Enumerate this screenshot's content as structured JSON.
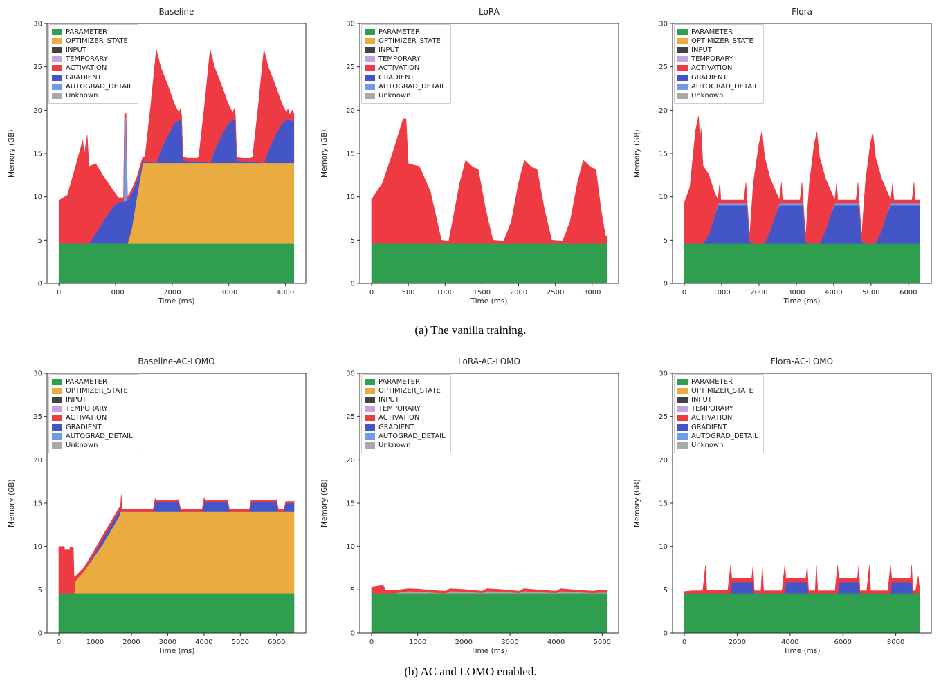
{
  "figure": {
    "captions": {
      "a": "(a) The vanilla training.",
      "b": "(b) AC and LOMO enabled."
    }
  },
  "legend": {
    "items": [
      "PARAMETER",
      "OPTIMIZER_STATE",
      "INPUT",
      "TEMPORARY",
      "ACTIVATION",
      "GRADIENT",
      "AUTOGRAD_DETAIL",
      "Unknown"
    ],
    "colors": {
      "PARAMETER": "#2f9e4f",
      "OPTIMIZER_STATE": "#eaab40",
      "INPUT": "#424242",
      "TEMPORARY": "#c5a3e0",
      "ACTIVATION": "#ee3b43",
      "GRADIENT": "#4456c7",
      "AUTOGRAD_DETAIL": "#6f9ce8",
      "Unknown": "#a9a9a9"
    }
  },
  "chart_data": [
    {
      "type": "area",
      "title": "Baseline",
      "xlabel": "Time (ms)",
      "ylabel": "Memory (GB)",
      "ylim": [
        0,
        30
      ],
      "yticks": [
        0,
        5,
        10,
        15,
        20,
        25,
        30
      ],
      "xlim": [
        -210,
        4360
      ],
      "xticks": [
        0,
        1000,
        2000,
        3000,
        4000
      ],
      "x": [
        0,
        150,
        300,
        420,
        450,
        500,
        530,
        650,
        800,
        950,
        1050,
        1140,
        1160,
        1185,
        1210,
        1280,
        1380,
        1480,
        1520,
        1620,
        1720,
        1800,
        1920,
        2040,
        2120,
        2145,
        2165,
        2190,
        2300,
        2420,
        2470,
        2570,
        2670,
        2750,
        2870,
        2990,
        3070,
        3095,
        3115,
        3140,
        3250,
        3370,
        3420,
        3520,
        3620,
        3700,
        3820,
        3940,
        4020,
        4045,
        4065,
        4090,
        4120,
        4150
      ],
      "series": [
        {
          "name": "PARAMETER",
          "const": 4.6
        },
        {
          "name": "OPTIMIZER_STATE",
          "values": [
            0,
            0,
            0,
            0,
            0,
            0,
            0,
            0,
            0,
            0,
            0,
            0,
            0,
            0,
            0,
            1.5,
            5.5,
            9.3,
            9.3,
            9.3,
            9.3,
            9.3,
            9.3,
            9.3,
            9.3,
            9.3,
            9.3,
            9.3,
            9.3,
            9.3,
            9.3,
            9.3,
            9.3,
            9.3,
            9.3,
            9.3,
            9.3,
            9.3,
            9.3,
            9.3,
            9.3,
            9.3,
            9.3,
            9.3,
            9.3,
            9.3,
            9.3,
            9.3,
            9.3,
            9.3,
            9.3,
            9.3,
            9.3,
            9.3
          ]
        },
        {
          "name": "GRADIENT",
          "values": [
            0,
            0,
            0,
            0,
            0,
            0,
            0,
            1.2,
            2.8,
            4.2,
            4.8,
            4.9,
            4.9,
            4.9,
            5.0,
            4.2,
            1.8,
            0.3,
            0.2,
            0.1,
            0,
            1.5,
            3.2,
            4.6,
            5.0,
            5.0,
            5.0,
            0.3,
            0.2,
            0.2,
            0.2,
            0.1,
            0,
            1.5,
            3.2,
            4.6,
            5.0,
            5.0,
            5.0,
            0.3,
            0.2,
            0.2,
            0.2,
            0.1,
            0,
            1.5,
            3.2,
            4.6,
            5.0,
            5.0,
            5.0,
            5.0,
            4.9,
            4.9
          ]
        },
        {
          "name": "AUTOGRAD_DETAIL",
          "values": [
            0,
            0,
            0,
            0,
            0,
            0,
            0,
            0,
            0,
            0,
            0,
            0,
            9.6,
            9.6,
            0,
            0,
            0,
            0,
            0,
            0,
            0,
            0,
            0,
            0,
            0,
            0,
            0,
            0,
            0,
            0,
            0,
            0,
            0,
            0,
            0,
            0,
            0,
            0,
            0,
            0,
            0,
            0,
            0,
            0,
            0,
            0,
            0,
            0,
            0,
            0,
            0,
            0,
            0,
            0
          ]
        },
        {
          "name": "ACTIVATION",
          "values": [
            5.0,
            5.6,
            9.0,
            11.9,
            10.3,
            12.5,
            8.9,
            8.0,
            4.8,
            2.0,
            0.5,
            0.4,
            0.5,
            0.5,
            0.4,
            0.4,
            0.4,
            0.4,
            0.5,
            6.5,
            13.1,
            9.5,
            5.8,
            2.2,
            0.8,
            1.3,
            0.6,
            0.4,
            0.4,
            0.4,
            0.5,
            6.5,
            13.1,
            9.5,
            5.8,
            2.2,
            0.8,
            1.3,
            0.6,
            0.4,
            0.4,
            0.4,
            0.5,
            6.5,
            13.1,
            9.5,
            5.8,
            2.2,
            0.8,
            1.3,
            0.6,
            0.7,
            1.2,
            0.8
          ]
        }
      ]
    },
    {
      "type": "area",
      "title": "LoRA",
      "xlabel": "Time (ms)",
      "ylabel": "Memory (GB)",
      "ylim": [
        0,
        30
      ],
      "yticks": [
        0,
        5,
        10,
        15,
        20,
        25,
        30
      ],
      "xlim": [
        -160,
        3360
      ],
      "xticks": [
        0,
        500,
        1000,
        1500,
        2000,
        2500,
        3000
      ],
      "x": [
        0,
        150,
        300,
        430,
        470,
        500,
        650,
        800,
        950,
        1050,
        1100,
        1200,
        1280,
        1380,
        1450,
        1550,
        1650,
        1800,
        1900,
        2000,
        2080,
        2180,
        2250,
        2350,
        2450,
        2600,
        2700,
        2800,
        2880,
        2980,
        3050,
        3120,
        3180,
        3200
      ],
      "series": [
        {
          "name": "PARAMETER",
          "const": 4.6
        },
        {
          "name": "ACTIVATION",
          "values": [
            5.1,
            7.0,
            10.8,
            14.4,
            14.4,
            9.2,
            8.9,
            6.0,
            0.4,
            0.3,
            2.5,
            7.0,
            9.6,
            8.8,
            8.6,
            4.0,
            0.4,
            0.3,
            2.5,
            7.0,
            9.6,
            8.8,
            8.6,
            4.0,
            0.4,
            0.3,
            2.5,
            7.0,
            9.6,
            8.8,
            8.6,
            4.0,
            0.9,
            0.9
          ]
        }
      ]
    },
    {
      "type": "area",
      "title": "Flora",
      "xlabel": "Time (ms)",
      "ylabel": "Memory (GB)",
      "ylim": [
        0,
        30
      ],
      "yticks": [
        0,
        5,
        10,
        15,
        20,
        25,
        30
      ],
      "xlim": [
        -315,
        6615
      ],
      "xticks": [
        0,
        1000,
        2000,
        3000,
        4000,
        5000,
        6000
      ],
      "x": [
        0,
        150,
        300,
        380,
        420,
        450,
        500,
        650,
        800,
        900,
        950,
        980,
        1600,
        1650,
        1680,
        1750,
        1850,
        2000,
        2080,
        2150,
        2300,
        2450,
        2550,
        2600,
        2630,
        3100,
        3150,
        3180,
        3250,
        3350,
        3480,
        3550,
        3620,
        3780,
        3930,
        4030,
        4080,
        4110,
        4600,
        4650,
        4680,
        4750,
        4850,
        4980,
        5050,
        5120,
        5280,
        5430,
        5530,
        5580,
        5610,
        6100,
        6150,
        6180,
        6300
      ],
      "series": [
        {
          "name": "PARAMETER",
          "const": 4.6
        },
        {
          "name": "GRADIENT",
          "values": [
            0,
            0,
            0,
            0,
            0,
            0,
            0,
            1.0,
            3.0,
            4.4,
            4.4,
            4.4,
            4.4,
            4.4,
            4.4,
            0.3,
            0,
            0,
            0,
            0,
            1.5,
            3.5,
            4.4,
            4.4,
            4.4,
            4.4,
            4.4,
            4.4,
            0.3,
            0,
            0,
            0,
            0,
            1.5,
            3.5,
            4.4,
            4.4,
            4.4,
            4.4,
            4.4,
            4.4,
            0.3,
            0,
            0,
            0,
            0,
            1.5,
            3.5,
            4.4,
            4.4,
            4.4,
            4.4,
            4.4,
            4.4,
            4.4
          ]
        },
        {
          "name": "AUTOGRAD_DETAIL",
          "values": [
            0,
            0,
            0,
            0,
            0,
            0,
            0,
            0,
            0,
            0.25,
            0.25,
            0.25,
            0.25,
            0.25,
            0.25,
            0,
            0,
            0,
            0,
            0,
            0,
            0,
            0.25,
            0.25,
            0.25,
            0.25,
            0.25,
            0.25,
            0,
            0,
            0,
            0,
            0,
            0,
            0,
            0.25,
            0.25,
            0.25,
            0.25,
            0.25,
            0.25,
            0,
            0,
            0,
            0,
            0,
            0,
            0,
            0.25,
            0.25,
            0.25,
            0.25,
            0.25,
            0.25,
            0.25
          ]
        },
        {
          "name": "ACTIVATION",
          "values": [
            4.7,
            6.5,
            13.0,
            14.7,
            12.0,
            13.3,
            9.0,
            7.0,
            3.0,
            0.4,
            2.4,
            0.4,
            0.4,
            2.4,
            0.4,
            0.5,
            7.0,
            11.5,
            13.0,
            10.0,
            6.0,
            2.5,
            0.4,
            2.4,
            0.4,
            0.4,
            2.4,
            0.4,
            0.5,
            7.0,
            11.5,
            12.9,
            10.0,
            6.0,
            2.5,
            0.4,
            2.4,
            0.4,
            0.4,
            2.4,
            0.4,
            0.5,
            7.0,
            11.5,
            12.8,
            10.0,
            6.0,
            2.5,
            0.4,
            2.4,
            0.4,
            0.4,
            2.4,
            0.4,
            0.4
          ]
        }
      ]
    },
    {
      "type": "area",
      "title": "Baseline-AC-LOMO",
      "xlabel": "Time (ms)",
      "ylabel": "Memory (GB)",
      "ylim": [
        0,
        30
      ],
      "yticks": [
        0,
        5,
        10,
        15,
        20,
        25,
        30
      ],
      "xlim": [
        -325,
        6805
      ],
      "xticks": [
        0,
        1000,
        2000,
        3000,
        4000,
        5000,
        6000
      ],
      "x": [
        0,
        150,
        160,
        300,
        310,
        400,
        420,
        450,
        700,
        1000,
        1200,
        1400,
        1650,
        1700,
        1720,
        1750,
        2600,
        2650,
        2700,
        3300,
        3360,
        3950,
        4000,
        4050,
        4650,
        4700,
        5250,
        5300,
        5350,
        6000,
        6050,
        6200,
        6250,
        6480
      ],
      "series": [
        {
          "name": "PARAMETER",
          "const": 4.6
        },
        {
          "name": "OPTIMIZER_STATE",
          "values": [
            0,
            0,
            0,
            0,
            0,
            0,
            0,
            1.4,
            2.6,
            4.4,
            5.6,
            7.0,
            8.8,
            9.4,
            9.4,
            9.4,
            9.4,
            9.4,
            9.4,
            9.4,
            9.4,
            9.4,
            9.4,
            9.4,
            9.4,
            9.4,
            9.4,
            9.4,
            9.4,
            9.4,
            9.4,
            9.4,
            9.4,
            9.4
          ]
        },
        {
          "name": "GRADIENT",
          "values": [
            0,
            0,
            0,
            0,
            0,
            0,
            0,
            0,
            0,
            0.3,
            0.6,
            0.6,
            0.6,
            0.3,
            0.2,
            0,
            0,
            1.0,
            1.1,
            1.1,
            0,
            0,
            1.0,
            1.1,
            1.1,
            0,
            0,
            1.0,
            1.1,
            1.1,
            0,
            0,
            1.0,
            1.0
          ]
        },
        {
          "name": "ACTIVATION",
          "values": [
            5.4,
            5.4,
            5.0,
            5.0,
            5.3,
            5.3,
            1.9,
            0.5,
            0.4,
            0.4,
            0.4,
            0.4,
            0.4,
            0.4,
            1.8,
            0.3,
            0.3,
            0.5,
            0.2,
            0.3,
            0.3,
            0.3,
            0.6,
            0.2,
            0.3,
            0.3,
            0.3,
            0.4,
            0.2,
            0.3,
            0.3,
            0.3,
            0.2,
            0.2
          ]
        }
      ]
    },
    {
      "type": "area",
      "title": "LoRA-AC-LOMO",
      "xlabel": "Time (ms)",
      "ylabel": "Memory (GB)",
      "ylim": [
        0,
        30
      ],
      "yticks": [
        0,
        5,
        10,
        15,
        20,
        25,
        30
      ],
      "xlim": [
        -255,
        5355
      ],
      "xticks": [
        0,
        1000,
        2000,
        3000,
        4000,
        5000
      ],
      "x": [
        0,
        100,
        250,
        300,
        500,
        800,
        1000,
        1300,
        1600,
        1700,
        2000,
        2400,
        2500,
        2800,
        3200,
        3300,
        3600,
        4000,
        4100,
        4400,
        4800,
        5000,
        5100
      ],
      "series": [
        {
          "name": "PARAMETER",
          "const": 4.6
        },
        {
          "name": "Unknown",
          "values": [
            0,
            0,
            0,
            0,
            0,
            0.25,
            0.2,
            0.1,
            0,
            0.25,
            0.2,
            0.05,
            0.25,
            0.2,
            0.05,
            0.25,
            0.15,
            0.05,
            0.25,
            0.15,
            0.05,
            0.1,
            0.1
          ]
        },
        {
          "name": "ACTIVATION",
          "values": [
            0.7,
            0.8,
            0.9,
            0.4,
            0.35,
            0.3,
            0.3,
            0.25,
            0.25,
            0.3,
            0.25,
            0.2,
            0.3,
            0.25,
            0.2,
            0.3,
            0.25,
            0.2,
            0.3,
            0.25,
            0.2,
            0.3,
            0.3
          ]
        }
      ]
    },
    {
      "type": "area",
      "title": "Flora-AC-LOMO",
      "xlabel": "Time (ms)",
      "ylabel": "Memory (GB)",
      "ylim": [
        0,
        30
      ],
      "yticks": [
        0,
        5,
        10,
        15,
        20,
        25,
        30
      ],
      "xlim": [
        -445,
        9345
      ],
      "xticks": [
        0,
        2000,
        4000,
        6000,
        8000
      ],
      "x": [
        0,
        300,
        700,
        800,
        850,
        1650,
        1750,
        1800,
        2550,
        2600,
        2650,
        2900,
        2950,
        3000,
        3700,
        3800,
        3850,
        4600,
        4650,
        4700,
        4950,
        5000,
        5050,
        5700,
        5800,
        5850,
        6550,
        6600,
        6650,
        6900,
        7000,
        7050,
        7700,
        7800,
        7850,
        8550,
        8600,
        8650,
        8750,
        8850,
        8900
      ],
      "series": [
        {
          "name": "PARAMETER",
          "const": 4.6
        },
        {
          "name": "GRADIENT",
          "values": [
            0,
            0,
            0,
            0,
            0,
            0,
            0,
            1.3,
            1.3,
            1.3,
            0,
            0,
            0,
            0,
            0,
            0,
            1.3,
            1.3,
            1.3,
            0,
            0,
            0,
            0,
            0,
            0,
            1.3,
            1.3,
            1.3,
            0,
            0,
            0,
            0,
            0,
            0,
            1.3,
            1.3,
            1.3,
            0,
            0,
            0,
            0
          ]
        },
        {
          "name": "ACTIVATION",
          "values": [
            0.2,
            0.3,
            0.3,
            3.2,
            0.4,
            0.4,
            3.2,
            0.4,
            0.4,
            1.9,
            0.3,
            0.3,
            3.2,
            0.3,
            0.3,
            3.2,
            0.4,
            0.4,
            1.9,
            0.3,
            0.3,
            3.2,
            0.3,
            0.3,
            3.2,
            0.4,
            0.4,
            1.9,
            0.3,
            0.3,
            3.2,
            0.3,
            0.3,
            3.2,
            0.4,
            0.4,
            1.9,
            0.3,
            0.3,
            2.0,
            0.5
          ]
        }
      ]
    }
  ]
}
